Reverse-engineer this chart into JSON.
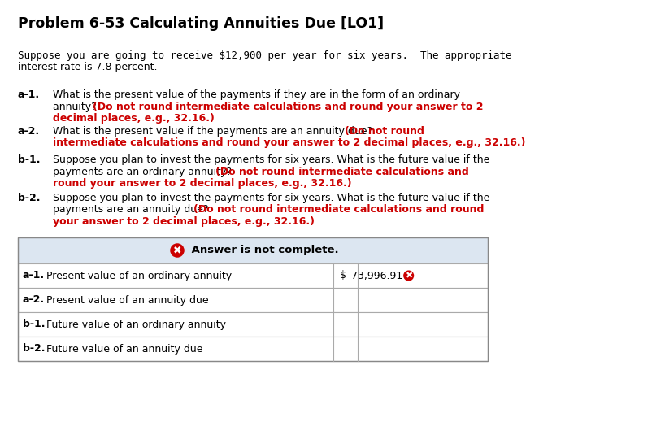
{
  "title": "Problem 6-53 Calculating Annuities Due [LO1]",
  "bg_color": "#ffffff",
  "text_color": "#000000",
  "red_color": "#cc0000",
  "table_header_bg": "#dce6f1",
  "title_fontsize": 12.5,
  "body_fontsize": 9.0,
  "table_fontsize": 9.0,
  "intro_line1": "Suppose you are going to receive $12,900 per year for six years.  The appropriate",
  "intro_line2": "interest rate is 7.8 percent.",
  "q_a1_line1_black": "What is the present value of the payments if they are in the form of an ordinary",
  "q_a1_line2_black": "annuity? ",
  "q_a1_line2_red": "(Do not round intermediate calculations and round your answer to 2",
  "q_a1_line3_red": "decimal places, e.g., 32.16.)",
  "q_a2_line1_black": "What is the present value if the payments are an annuity due? ",
  "q_a2_line1_red": "(Do not round",
  "q_a2_line2_red": "intermediate calculations and round your answer to 2 decimal places, e.g., 32.16.)",
  "q_b1_line1_black": "Suppose you plan to invest the payments for six years. What is the future value if the",
  "q_b1_line2_black": "payments are an ordinary annuity? ",
  "q_b1_line2_red": "(Do not round intermediate calculations and",
  "q_b1_line3_red": "round your answer to 2 decimal places, e.g., 32.16.)",
  "q_b2_line1_black": "Suppose you plan to invest the payments for six years. What is the future value if the",
  "q_b2_line2_black": "payments are an annuity due? ",
  "q_b2_line2_red": "(Do not round intermediate calculations and round",
  "q_b2_line3_red": "your answer to 2 decimal places, e.g., 32.16.)",
  "table_rows": [
    {
      "label": "a-1.",
      "desc": "Present value of an ordinary annuity",
      "dollar": "$",
      "value": "73,996.91",
      "has_x": true
    },
    {
      "label": "a-2.",
      "desc": "Present value of an annuity due",
      "dollar": "",
      "value": "",
      "has_x": false
    },
    {
      "label": "b-1.",
      "desc": "Future value of an ordinary annuity",
      "dollar": "",
      "value": "",
      "has_x": false
    },
    {
      "label": "b-2.",
      "desc": "Future value of an annuity due",
      "dollar": "",
      "value": "",
      "has_x": false
    }
  ]
}
